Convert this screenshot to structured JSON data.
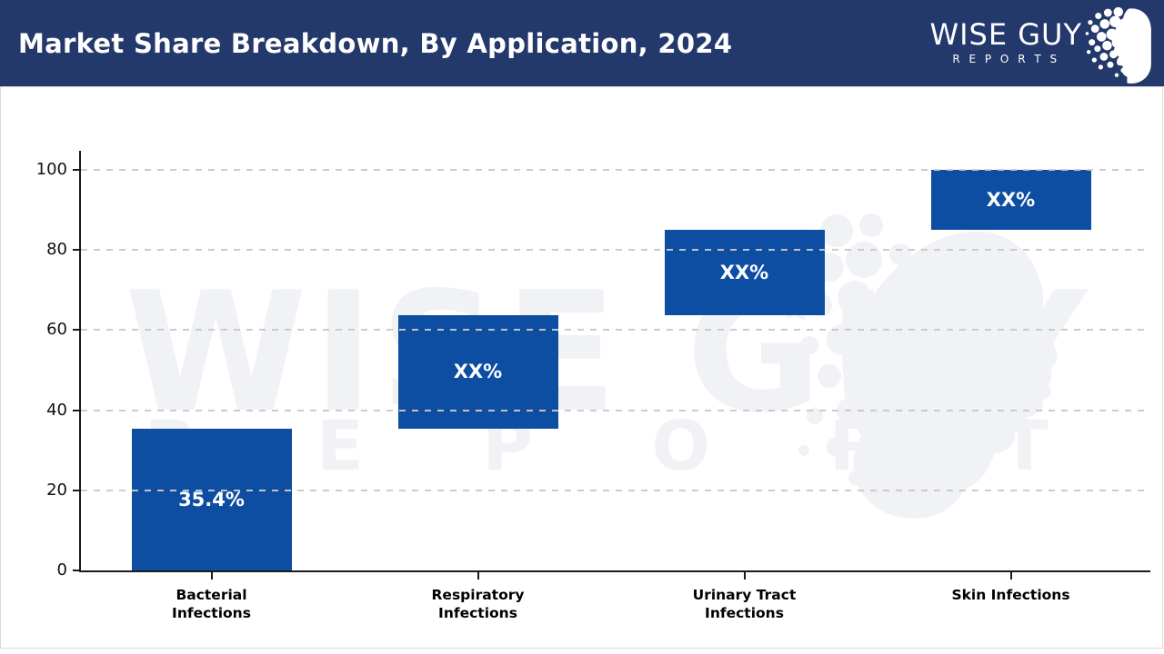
{
  "header": {
    "title": "Market Share Breakdown, By Application, 2024",
    "logo": {
      "line1": "WISE GUY",
      "line2": "R E P O R T S"
    }
  },
  "watermark": {
    "line1": "WISE GUY",
    "line2": "R E P O R T S"
  },
  "chart_data": {
    "type": "bar",
    "subtype": "waterfall",
    "title": "Market Share Breakdown, By Application, 2024",
    "categories": [
      "Bacterial\nInfections",
      "Respiratory\nInfections",
      "Urinary Tract\nInfections",
      "Skin Infections"
    ],
    "segments": [
      {
        "category": "Bacterial Infections",
        "start": 0,
        "end": 35.4,
        "label": "35.4%"
      },
      {
        "category": "Respiratory Infections",
        "start": 35.4,
        "end": 63.7,
        "label": "XX%"
      },
      {
        "category": "Urinary Tract Infections",
        "start": 63.7,
        "end": 85,
        "label": "XX%"
      },
      {
        "category": "Skin Infections",
        "start": 85,
        "end": 100,
        "label": "XX%"
      }
    ],
    "ylim": [
      0,
      100
    ],
    "yticks": [
      0,
      20,
      40,
      60,
      80,
      100
    ],
    "xlabel": "",
    "ylabel": "",
    "grid": {
      "axis": "y",
      "style": "dashed",
      "over_bars": true
    },
    "legend_position": "none",
    "bar_label_color": "#ffffff"
  },
  "colors": {
    "header_bg": "#24396b",
    "bar": "#0d4da2",
    "axis": "#1a1a1a",
    "gridline": "#c9c9c9",
    "watermark": "#f1f2f5",
    "panel_border": "#d6d9dc"
  }
}
